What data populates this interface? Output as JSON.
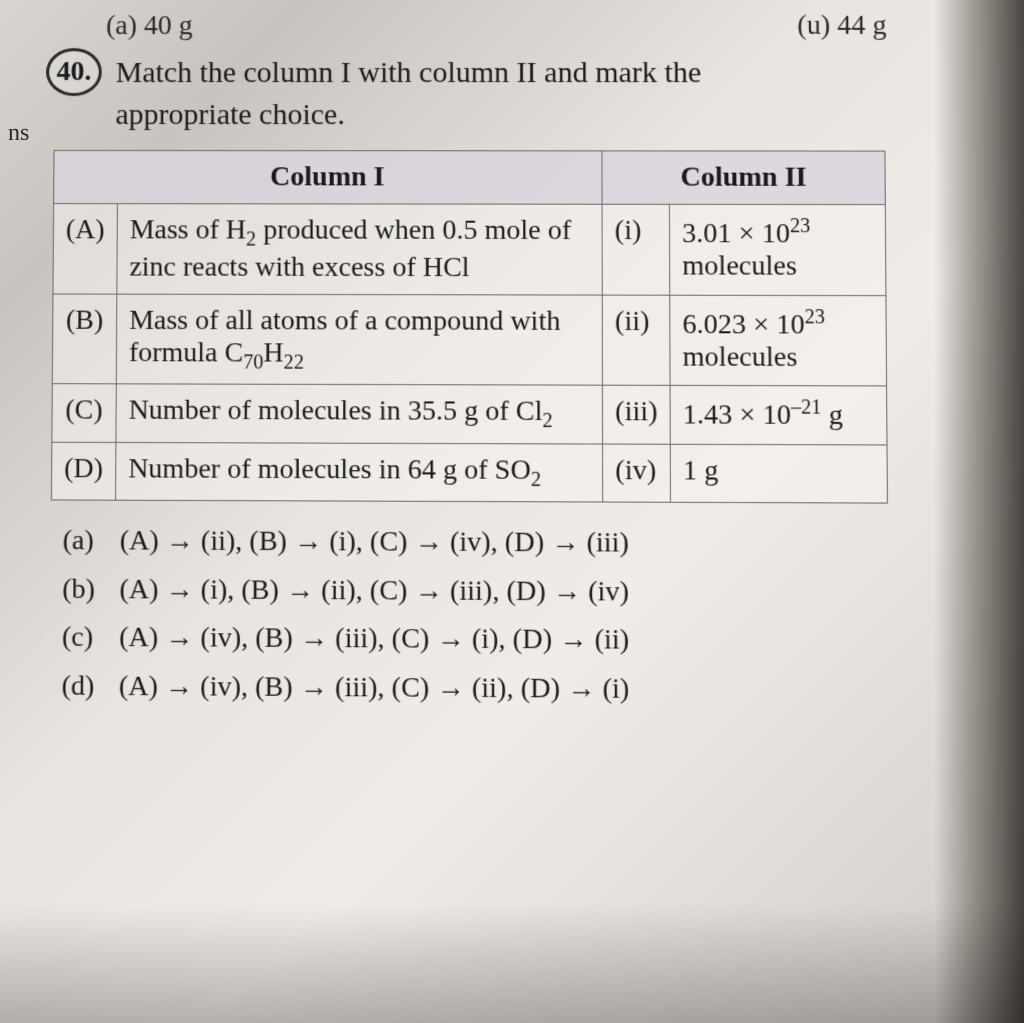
{
  "margin_text": "ns",
  "fragments": {
    "left": "(a)  40 g",
    "right": "(u)  44 g"
  },
  "question": {
    "number": "40.",
    "text_line1": "Match the column I with column II and mark the",
    "text_line2": "appropriate choice."
  },
  "table": {
    "headers": {
      "col1": "Column I",
      "col2": "Column II"
    },
    "rows": [
      {
        "a_label": "(A)",
        "a_html": "Mass of H<span class='sub'>2</span> produced when 0.5 mole of zinc reacts with excess of HCl",
        "b_label": "(i)",
        "b_html": "3.01 × 10<span class='sup'>23</span> molecules"
      },
      {
        "a_label": "(B)",
        "a_html": "Mass of all atoms of a compound with formula C<span class='sub'>70</span>H<span class='sub'>22</span>",
        "b_label": "(ii)",
        "b_html": "6.023 × 10<span class='sup'>23</span> molecules"
      },
      {
        "a_label": "(C)",
        "a_html": "Number of molecules in 35.5 g of Cl<span class='sub'>2</span>",
        "b_label": "(iii)",
        "b_html": "1.43 × 10<span class='sup'>–21</span> g"
      },
      {
        "a_label": "(D)",
        "a_html": "Number of molecules in 64 g of SO<span class='sub'>2</span>",
        "b_label": "(iv)",
        "b_html": "1 g"
      }
    ]
  },
  "options": [
    {
      "label": "(a)",
      "map": "(A) → (ii), (B) → (i), (C) → (iv), (D) → (iii)"
    },
    {
      "label": "(b)",
      "map": "(A) → (i), (B) → (ii), (C) → (iii), (D) → (iv)"
    },
    {
      "label": "(c)",
      "map": "(A) → (iv), (B) → (iii), (C) → (i), (D) → (ii)"
    },
    {
      "label": "(d)",
      "map": "(A) → (iv), (B) → (iii), (C) → (ii), (D) → (i)"
    }
  ],
  "colors": {
    "text": "#1a1a1a",
    "border": "#6a6a6a",
    "header_bg": "rgba(210,200,215,0.6)"
  }
}
